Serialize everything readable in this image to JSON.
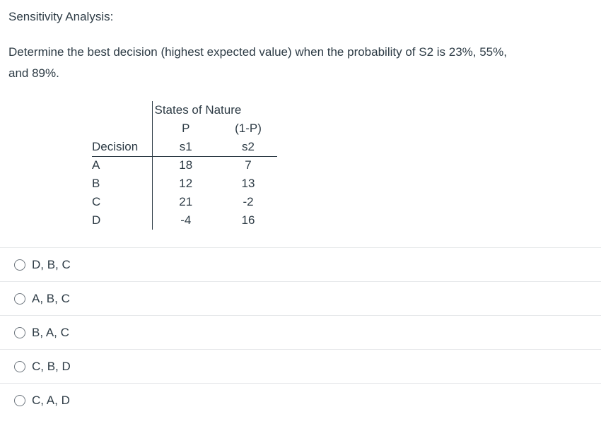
{
  "question": {
    "title": "Sensitivity Analysis:",
    "prompt": "Determine the best decision (highest expected value) when the probability of S2 is 23%, 55%,\nand 89%."
  },
  "table": {
    "header_group": "States of Nature",
    "p_label": "P",
    "one_minus_p_label": "(1-P)",
    "decision_label": "Decision",
    "s1_label": "s1",
    "s2_label": "s2",
    "rows": [
      {
        "decision": "A",
        "s1": "18",
        "s2": "7"
      },
      {
        "decision": "B",
        "s1": "12",
        "s2": "13"
      },
      {
        "decision": "C",
        "s1": "21",
        "s2": "-2"
      },
      {
        "decision": "D",
        "s1": "-4",
        "s2": "16"
      }
    ]
  },
  "options": [
    {
      "label": "D, B, C"
    },
    {
      "label": "A, B, C"
    },
    {
      "label": "B, A, C"
    },
    {
      "label": "C, B, D"
    },
    {
      "label": "C, A, D"
    }
  ],
  "colors": {
    "text": "#2D3B45",
    "divider": "#E6E8EA",
    "table_line": "#2D3B45",
    "radio_border": "#6F777F"
  }
}
